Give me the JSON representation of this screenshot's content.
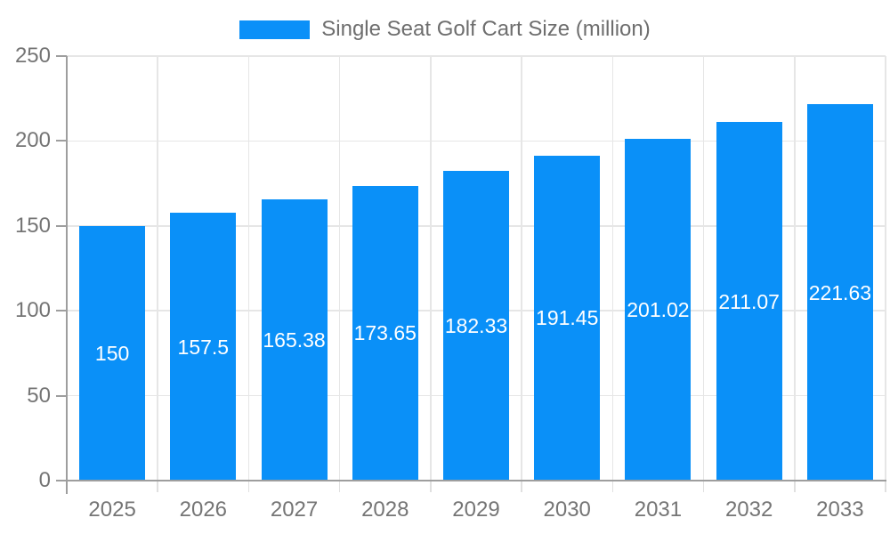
{
  "chart_data": {
    "type": "bar",
    "title": "Single Seat Golf Cart Size (million)",
    "categories": [
      "2025",
      "2026",
      "2027",
      "2028",
      "2029",
      "2030",
      "2031",
      "2032",
      "2033"
    ],
    "values": [
      150,
      157.5,
      165.38,
      173.65,
      182.33,
      191.45,
      201.02,
      211.07,
      221.63
    ],
    "value_labels": [
      "150",
      "157.5",
      "165.38",
      "173.65",
      "182.33",
      "191.45",
      "201.02",
      "211.07",
      "221.63"
    ],
    "xlabel": "",
    "ylabel": "",
    "ylim": [
      0,
      250
    ],
    "yticks": [
      0,
      50,
      100,
      150,
      200,
      250
    ],
    "grid": true,
    "legend_position": "top",
    "bar_color": "#0a90f8",
    "bar_label_color": "#ffffff",
    "axis_text_color": "#757575",
    "axis_line_color": "#9e9e9e",
    "grid_color": "#e6e6e6",
    "background_color": "#ffffff"
  }
}
